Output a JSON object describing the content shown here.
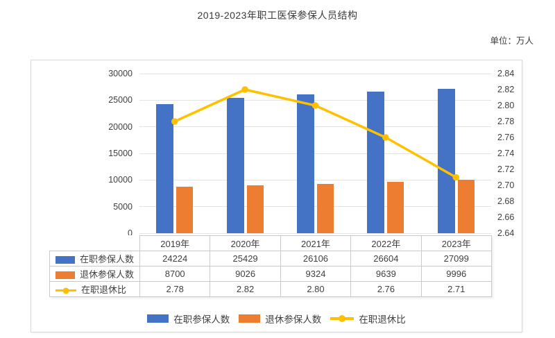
{
  "chart_data": {
    "type": "combo",
    "title": "2019-2023年职工医保参保人员结构",
    "unit_label": "单位：万人",
    "categories": [
      "2019年",
      "2020年",
      "2021年",
      "2022年",
      "2023年"
    ],
    "series": [
      {
        "name": "在职参保人数",
        "chart": "bar",
        "axis": "left",
        "color": "#4472C4",
        "values": [
          24224,
          25429,
          26106,
          26604,
          27099
        ],
        "display": [
          "24224",
          "25429",
          "26106",
          "26604",
          "27099"
        ]
      },
      {
        "name": "退休参保人数",
        "chart": "bar",
        "axis": "left",
        "color": "#ED7D31",
        "values": [
          8700,
          9026,
          9324,
          9639,
          9996
        ],
        "display": [
          "8700",
          "9026",
          "9324",
          "9639",
          "9996"
        ]
      },
      {
        "name": "在职退休比",
        "chart": "line",
        "axis": "right",
        "color": "#FFC000",
        "values": [
          2.78,
          2.82,
          2.8,
          2.76,
          2.71
        ],
        "display": [
          "2.78",
          "2.82",
          "2.80",
          "2.76",
          "2.71"
        ]
      }
    ],
    "left_axis": {
      "min": 0,
      "max": 30000,
      "step": 5000,
      "ticks": [
        0,
        5000,
        10000,
        15000,
        20000,
        25000,
        30000
      ]
    },
    "right_axis": {
      "min": 2.64,
      "max": 2.84,
      "step": 0.02,
      "tick_count": 11
    },
    "grid": true,
    "legend_position": "bottom",
    "data_table_shown": true
  },
  "colors": {
    "bar_active": "#4472C4",
    "bar_retired": "#ED7D31",
    "line_ratio": "#FFC000",
    "grid_line": "#E3E3E3",
    "card_border": "#D9D9D9",
    "table_border": "#C9C9C9",
    "text": "#404040"
  }
}
